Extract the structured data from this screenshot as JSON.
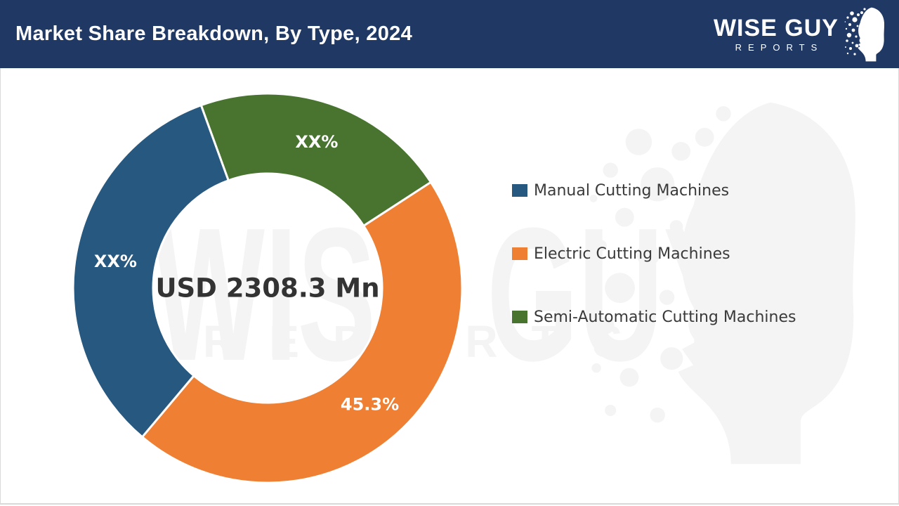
{
  "header": {
    "title": "Market Share Breakdown, By Type, 2024",
    "logo": {
      "wordmark": "WISE GUY",
      "subtext": "REPORTS"
    }
  },
  "watermark": {
    "wordmark": "WISE GUY",
    "subtext": "REPORTS"
  },
  "colors": {
    "header_bg": "#1f3864",
    "blue": "#27587f",
    "orange": "#ee7f33",
    "green": "#487430",
    "center_text": "#333333",
    "legend_text": "#3a3a3a",
    "watermark": "#f4f4f4"
  },
  "chart_data": {
    "type": "pie",
    "subtype": "donut",
    "title": "Market Share Breakdown, By Type, 2024",
    "center_label": "USD 2308.3 Mn",
    "start_angle_deg": -20,
    "direction": "clockwise",
    "inner_radius_ratio": 0.59,
    "series": [
      {
        "name": "Semi-Automatic Cutting Machines",
        "value_pct": 21.4,
        "displayed_label": "XX%",
        "color": "#487430"
      },
      {
        "name": "Electric Cutting Machines",
        "value_pct": 45.3,
        "displayed_label": "45.3%",
        "color": "#ee7f33"
      },
      {
        "name": "Manual Cutting Machines",
        "value_pct": 33.3,
        "displayed_label": "XX%",
        "color": "#27587f"
      }
    ],
    "legend": {
      "position": "right",
      "items": [
        {
          "name": "Manual Cutting Machines",
          "color": "#27587f"
        },
        {
          "name": "Electric Cutting Machines",
          "color": "#ee7f33"
        },
        {
          "name": "Semi-Automatic Cutting Machines",
          "color": "#487430"
        }
      ]
    }
  }
}
